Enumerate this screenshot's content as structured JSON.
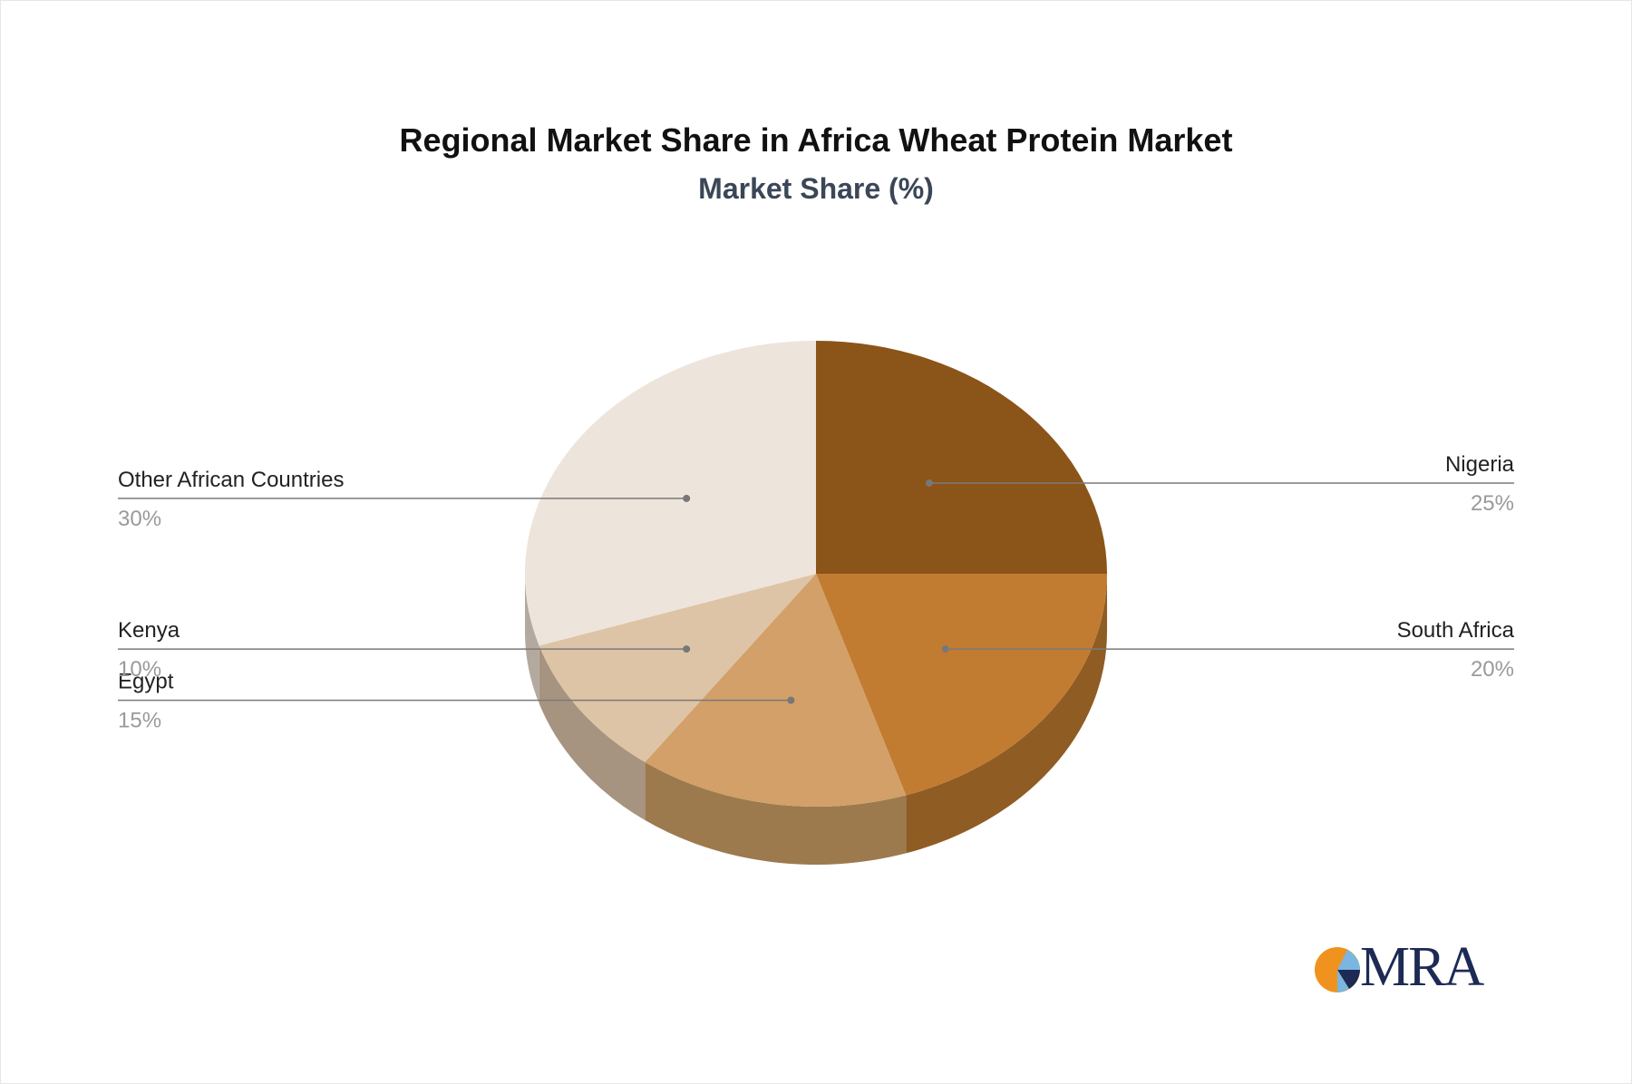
{
  "chart_data": {
    "type": "pie",
    "title": "Regional Market Share in Africa Wheat Protein Market",
    "subtitle": "Market Share (%)",
    "slices": [
      {
        "label": "Nigeria",
        "value": 25,
        "value_label": "25%",
        "color": "#8B5419",
        "side_color": "#8B5A22"
      },
      {
        "label": "South Africa",
        "value": 20,
        "value_label": "20%",
        "color": "#C17C32",
        "side_color": "#8F5C24"
      },
      {
        "label": "Egypt",
        "value": 15,
        "value_label": "15%",
        "color": "#D2A068",
        "side_color": "#9C7A4E"
      },
      {
        "label": "Kenya",
        "value": 10,
        "value_label": "10%",
        "color": "#DEC4A6",
        "side_color": "#A69480"
      },
      {
        "label": "Other African Countries",
        "value": 30,
        "value_label": "30%",
        "color": "#EDE4DB",
        "side_color": "#B3A99E"
      }
    ],
    "legend": "none"
  },
  "logo": {
    "text": "MRA",
    "colors": [
      "#F0921E",
      "#1C2A55",
      "#7AB6E0"
    ]
  }
}
